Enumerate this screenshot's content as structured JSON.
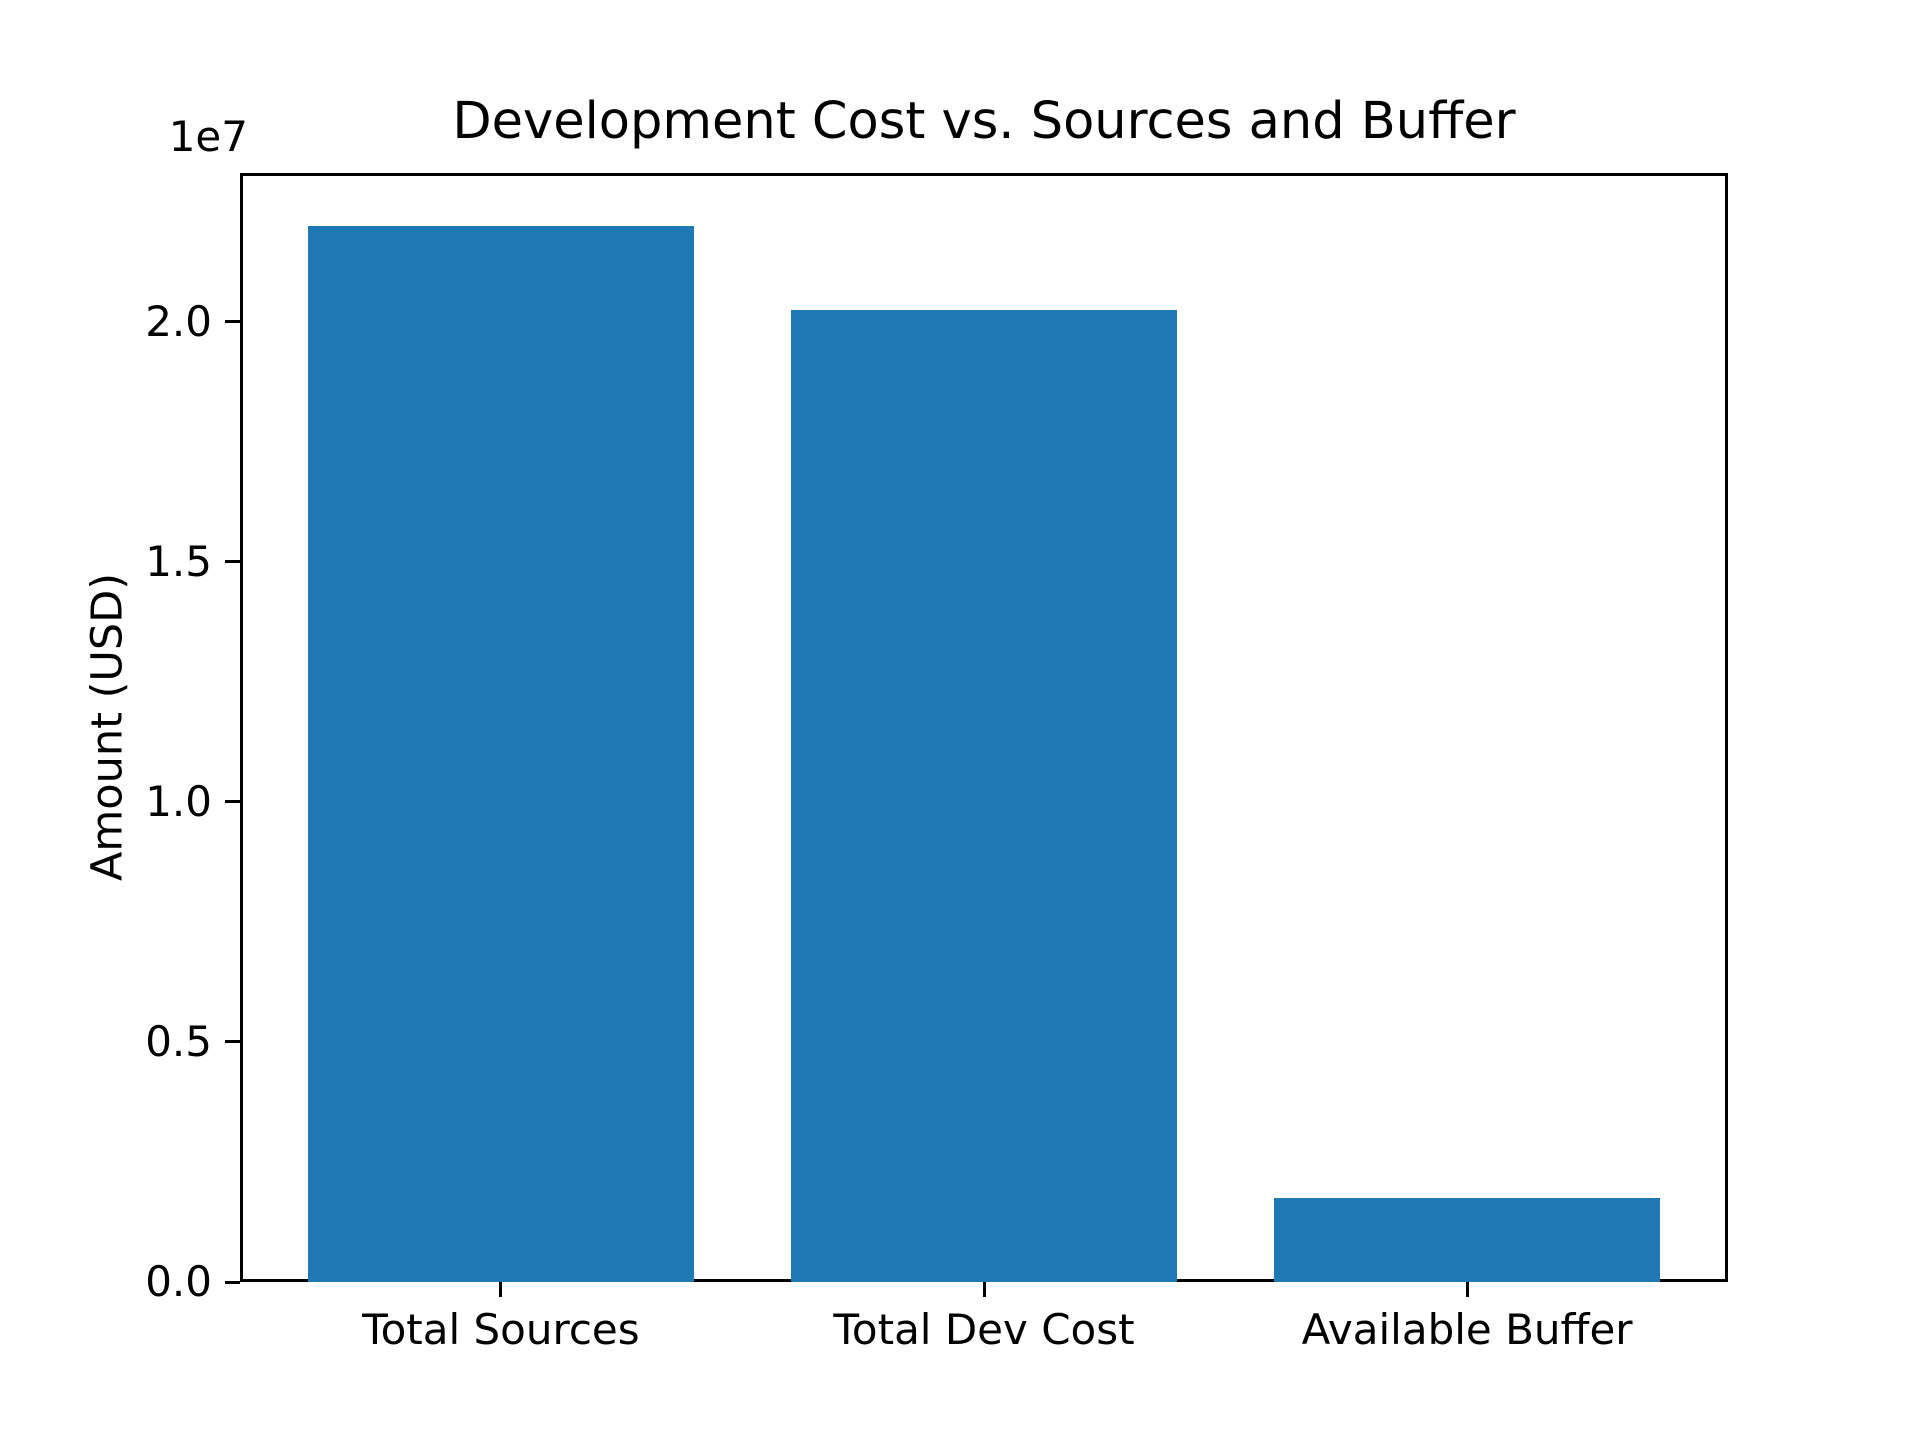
{
  "chart_data": {
    "type": "bar",
    "title": "Development Cost vs. Sources and Buffer",
    "categories": [
      "Total Sources",
      "Total Dev Cost",
      "Available Buffer"
    ],
    "values": [
      22000000,
      20250000,
      1750000
    ],
    "xlabel": "",
    "ylabel": "Amount (USD)",
    "ylim": [
      0,
      23100000
    ],
    "yticks": [
      0,
      5000000,
      10000000,
      15000000,
      20000000
    ],
    "ytick_labels": [
      "0.0",
      "0.5",
      "1.0",
      "1.5",
      "2.0"
    ],
    "offset_text": "1e7",
    "bar_color": "#1f77b4",
    "bar_width_fraction": 0.8,
    "grid": false,
    "legend_position": null
  }
}
